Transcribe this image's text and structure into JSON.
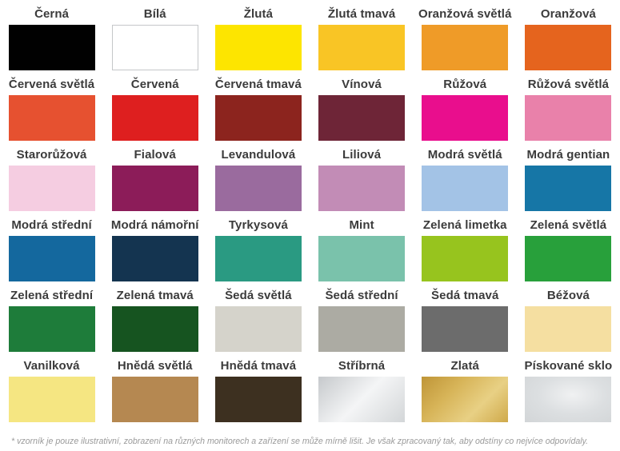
{
  "palette": {
    "columns": 6,
    "swatches": [
      {
        "label": "Černá",
        "color": "#010101"
      },
      {
        "label": "Bílá",
        "color": "#ffffff",
        "border": "#c5c7c9"
      },
      {
        "label": "Žlutá",
        "color": "#fde500"
      },
      {
        "label": "Žlutá tmavá",
        "color": "#f9c525"
      },
      {
        "label": "Oranžová světlá",
        "color": "#ef9b28"
      },
      {
        "label": "Oranžová",
        "color": "#e5641e"
      },
      {
        "label": "Červená světlá",
        "color": "#e65130"
      },
      {
        "label": "Červená",
        "color": "#de1f1f"
      },
      {
        "label": "Červená tmavá",
        "color": "#8c241e"
      },
      {
        "label": "Vínová",
        "color": "#6e2537"
      },
      {
        "label": "Růžová",
        "color": "#e90e8d"
      },
      {
        "label": "Růžová světlá",
        "color": "#e981aa"
      },
      {
        "label": "Starorůžová",
        "color": "#f5cde1"
      },
      {
        "label": "Fialová",
        "color": "#8c1c59"
      },
      {
        "label": "Levandulová",
        "color": "#9a6b9e"
      },
      {
        "label": "Liliová",
        "color": "#c28cb6"
      },
      {
        "label": "Modrá světlá",
        "color": "#a3c3e6"
      },
      {
        "label": "Modrá gentian",
        "color": "#1676a6"
      },
      {
        "label": "Modrá střední",
        "color": "#14689e"
      },
      {
        "label": "Modrá námořní",
        "color": "#143450"
      },
      {
        "label": "Tyrkysová",
        "color": "#2a9a82"
      },
      {
        "label": "Mint",
        "color": "#7ac2ab"
      },
      {
        "label": "Zelená limetka",
        "color": "#97c41e"
      },
      {
        "label": "Zelená světlá",
        "color": "#28a03b"
      },
      {
        "label": "Zelená střední",
        "color": "#1e7c3a"
      },
      {
        "label": "Zelená tmavá",
        "color": "#165420"
      },
      {
        "label": "Šedá světlá",
        "color": "#d5d3cb"
      },
      {
        "label": "Šedá střední",
        "color": "#acaba3"
      },
      {
        "label": "Šedá tmavá",
        "color": "#6c6c6c"
      },
      {
        "label": "Béžová",
        "color": "#f5dfa1"
      },
      {
        "label": "Vanilková",
        "color": "#f5e682"
      },
      {
        "label": "Hnědá světlá",
        "color": "#b58851"
      },
      {
        "label": "Hnědá tmavá",
        "color": "#3d3020"
      },
      {
        "label": "Stříbrná",
        "color": "#d9dbdd",
        "gradient_type": "linear",
        "gradient": [
          "#c6c9cc",
          "#f4f5f6",
          "#d3d6d8"
        ]
      },
      {
        "label": "Zlatá",
        "color": "#d4af55",
        "gradient_type": "linear",
        "gradient": [
          "#bf9537",
          "#d7b458",
          "#e8d084",
          "#cfa94a"
        ]
      },
      {
        "label": "Pískované sklo",
        "color": "#e2e4e6",
        "gradient_type": "radial",
        "gradient": [
          "#f0f1f2",
          "#dcdfe1",
          "#d2d5d7"
        ]
      }
    ]
  },
  "footnote": "* vzorník je pouze ilustrativní, zobrazení na různých monitorech a zařízení se může mírně lišit. Je však zpracovaný tak, aby odstíny co nejvíce odpovídaly."
}
